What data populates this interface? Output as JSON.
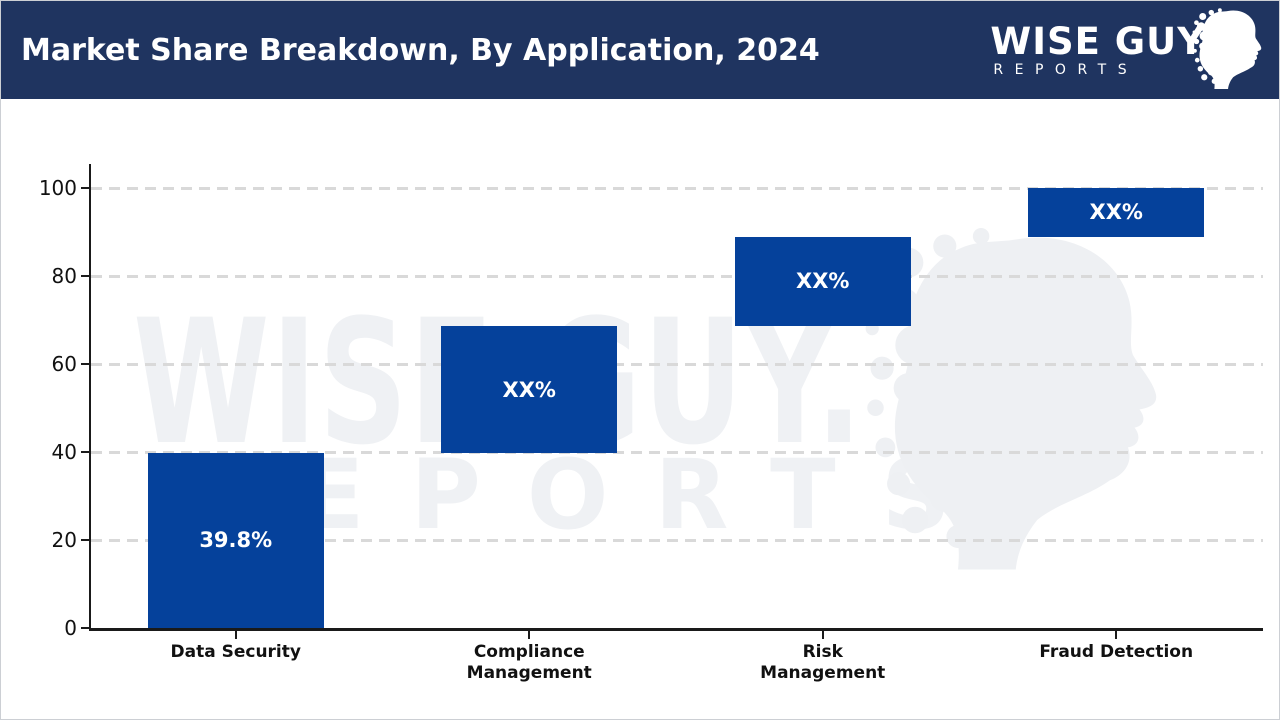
{
  "header": {
    "logo": {
      "line1": "WISE GUY",
      "line2": "REPORTS"
    }
  },
  "watermark": {
    "line1": "WISE GUY.",
    "line2": "REPORTS"
  },
  "chart_data": {
    "type": "bar",
    "subtype": "waterfall",
    "title": "Market Share Breakdown, By Application, 2024",
    "categories": [
      "Data Security",
      "Compliance Management",
      "Risk Management",
      "Fraud Detection"
    ],
    "segments": [
      {
        "category": "Data Security",
        "start": 0,
        "end": 39.8,
        "value": 39.8,
        "label": "39.8%"
      },
      {
        "category": "Compliance Management",
        "start": 39.8,
        "end": 68.6,
        "value": 28.8,
        "label": "XX%"
      },
      {
        "category": "Risk Management",
        "start": 68.6,
        "end": 88.9,
        "value": 20.3,
        "label": "XX%"
      },
      {
        "category": "Fraud Detection",
        "start": 88.9,
        "end": 100,
        "value": 11.1,
        "label": "XX%"
      }
    ],
    "y_ticks": [
      0,
      20,
      40,
      60,
      80,
      100
    ],
    "ylim": [
      0,
      105
    ],
    "xlabel": "",
    "ylabel": "",
    "grid": "horizontal-dashed",
    "legend": "none",
    "colors": {
      "bar": "#05419b",
      "bar_label": "#ffffff",
      "header_bg": "#1f3460",
      "header_text": "#ffffff",
      "gridline": "#d9d9d9",
      "axis": "#1a1a1a",
      "watermark": "#eff1f4"
    }
  }
}
